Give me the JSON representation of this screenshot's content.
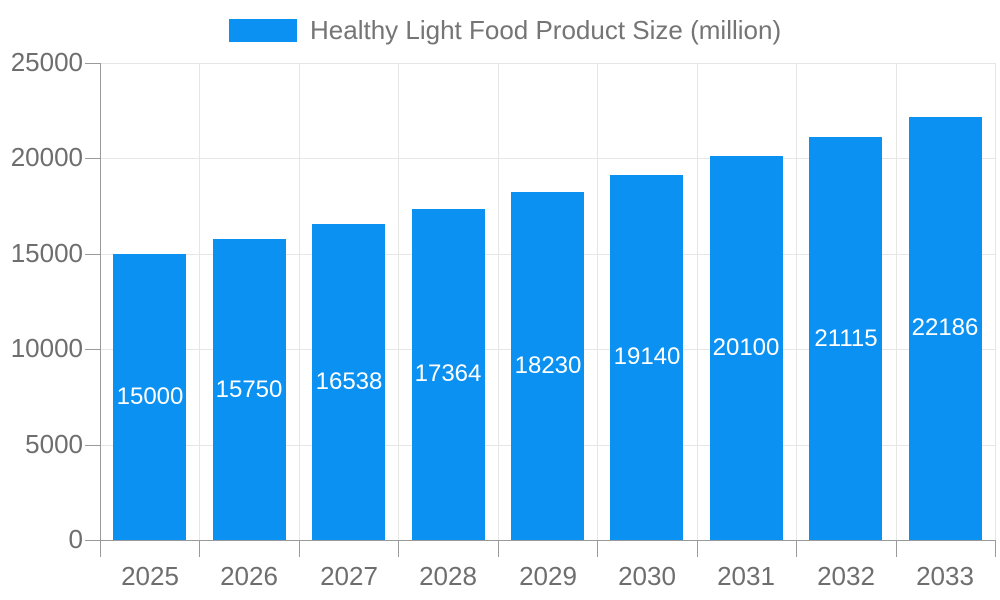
{
  "legend": {
    "label": "Healthy Light Food Product Size (million)"
  },
  "colors": {
    "bar": "#0b91f2",
    "grid": "#e6e6e6",
    "axis": "#9a9a9a",
    "axis_label": "#6e6e6e",
    "legend_text": "#757575",
    "value_label": "#ffffff",
    "background": "#ffffff"
  },
  "chart_data": {
    "type": "bar",
    "title": "",
    "xlabel": "",
    "ylabel": "",
    "categories": [
      "2025",
      "2026",
      "2027",
      "2028",
      "2029",
      "2030",
      "2031",
      "2032",
      "2033"
    ],
    "values": [
      15000,
      15750,
      16538,
      17364,
      18230,
      19140,
      20100,
      21115,
      22186
    ],
    "series_name": "Healthy Light Food Product Size (million)",
    "ylim": [
      0,
      25000
    ],
    "yticks": [
      0,
      5000,
      10000,
      15000,
      20000,
      25000
    ],
    "grid": true,
    "legend_position": "top",
    "value_labels": "inside-center"
  }
}
